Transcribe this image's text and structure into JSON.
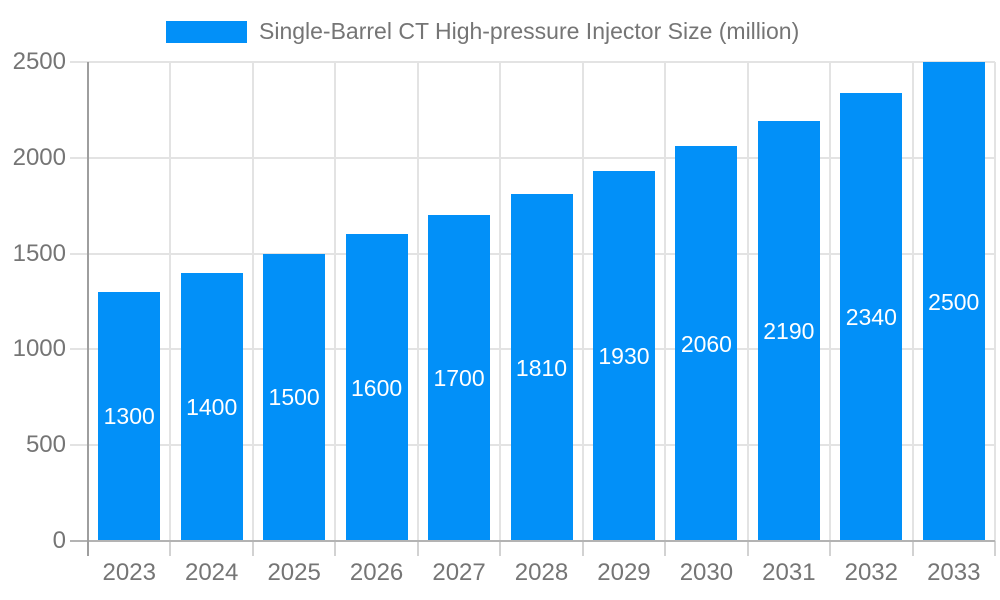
{
  "chart_data": {
    "type": "bar",
    "title": "Single-Barrel CT High-pressure Injector Size (million)",
    "categories": [
      "2023",
      "2024",
      "2025",
      "2026",
      "2027",
      "2028",
      "2029",
      "2030",
      "2031",
      "2032",
      "2033"
    ],
    "series": [
      {
        "name": "Single-Barrel CT High-pressure Injector Size (million)",
        "values": [
          1300,
          1400,
          1500,
          1600,
          1700,
          1810,
          1930,
          2060,
          2190,
          2340,
          2500
        ]
      }
    ],
    "bar_value_labels": [
      "1300",
      "1400",
      "1500",
      "1600",
      "1700",
      "1810",
      "1930",
      "2060",
      "2190",
      "2340",
      "2500"
    ],
    "xlabel": "",
    "ylabel": "",
    "y_ticks": [
      0,
      500,
      1000,
      1500,
      2000,
      2500
    ],
    "ylim": [
      0,
      2500
    ],
    "grid": true,
    "legend_position": "top",
    "colors": {
      "bar": "#0290f8",
      "gridline": "#e3e3e3",
      "axis_line": "#9e9e9e",
      "baseline": "#b3b3b3",
      "tick": "#d2d2d2",
      "axis_text": "#757575",
      "title_text": "#757575",
      "bar_label_text": "#ffffff",
      "background": "#ffffff"
    }
  },
  "legend": {
    "label": "Single-Barrel CT High-pressure Injector Size (million)"
  }
}
